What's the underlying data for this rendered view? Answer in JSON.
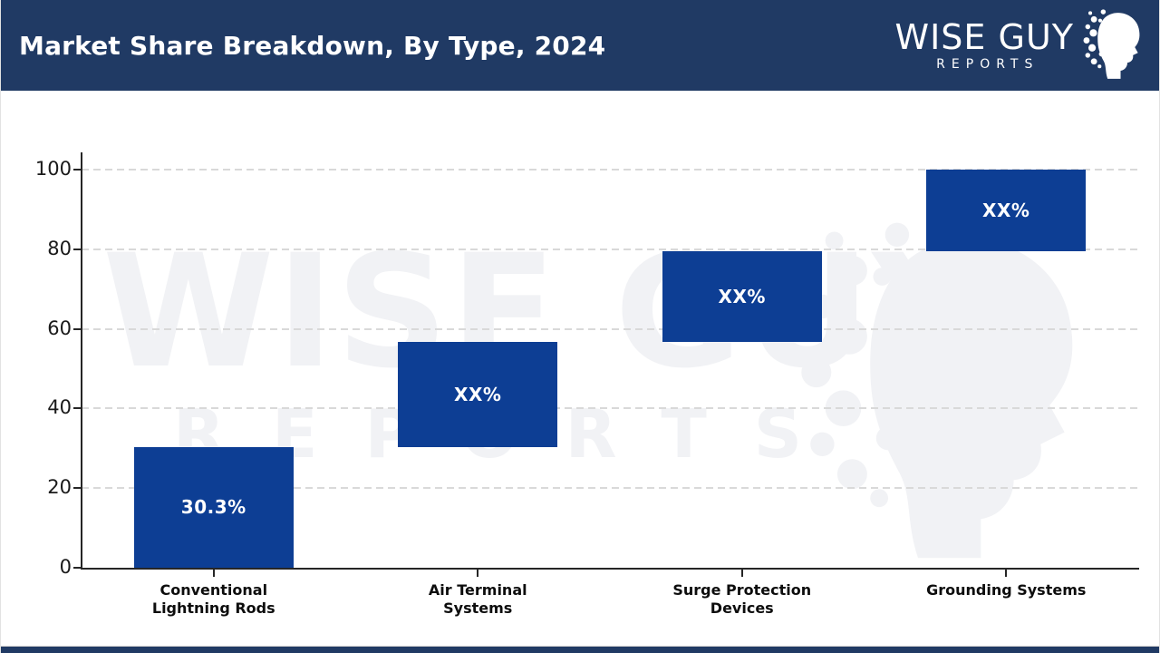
{
  "header": {
    "title": "Market Share Breakdown, By Type, 2024",
    "logo": {
      "line1": "WISE GUY",
      "line2": "REPORTS"
    }
  },
  "watermark": {
    "line1": "WISE GUY",
    "line2": "REPORTS"
  },
  "colors": {
    "header_bg": "#203a64",
    "footer_bg": "#203a64",
    "bar": "#0d3e94",
    "axis": "#262626",
    "grid": "#d9d9d9",
    "watermark": "#f1f2f5"
  },
  "chart_data": {
    "type": "bar",
    "subtype": "waterfall",
    "title": "Market Share Breakdown, By Type, 2024",
    "categories": [
      "Conventional\nLightning Rods",
      "Air Terminal\nSystems",
      "Surge Protection\nDevices",
      "Grounding Systems"
    ],
    "series": [
      {
        "name": "Market Share",
        "starts": [
          0,
          30.3,
          56.7,
          79.5
        ],
        "ends": [
          30.3,
          56.7,
          79.5,
          100
        ]
      }
    ],
    "bar_labels": [
      "30.3%",
      "XX%",
      "XX%",
      "XX%"
    ],
    "xlabel": "",
    "ylabel": "",
    "ylim": [
      0,
      100
    ],
    "yticks": [
      0,
      20,
      40,
      60,
      80,
      100
    ],
    "grid": "horizontal-dashed",
    "legend": "none"
  }
}
